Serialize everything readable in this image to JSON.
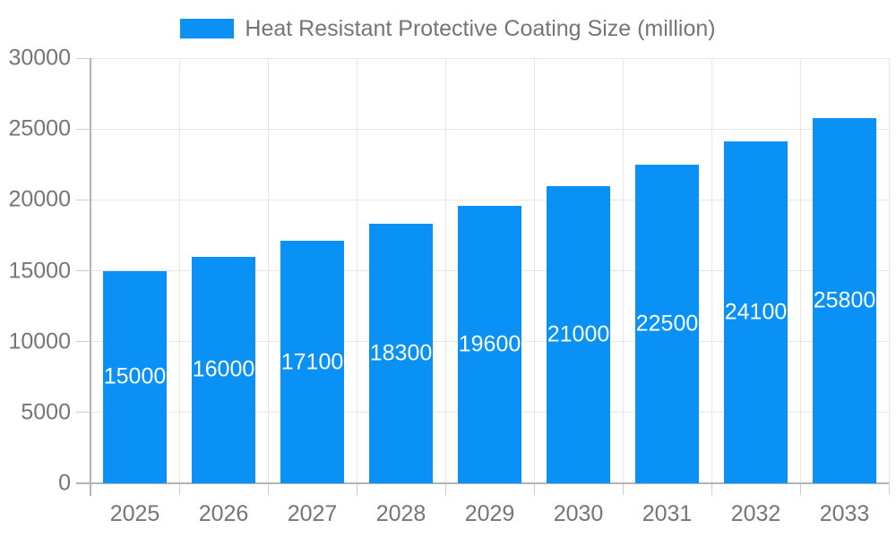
{
  "chart_data": {
    "type": "bar",
    "title": "Heat Resistant Protective Coating Size (million)",
    "categories": [
      "2025",
      "2026",
      "2027",
      "2028",
      "2029",
      "2030",
      "2031",
      "2032",
      "2033"
    ],
    "values": [
      15000,
      16000,
      17100,
      18300,
      19600,
      21000,
      22500,
      24100,
      25800
    ],
    "xlabel": "",
    "ylabel": "",
    "ylim": [
      0,
      30000
    ],
    "ytick_step": 5000,
    "ytick_labels": [
      "0",
      "5000",
      "10000",
      "15000",
      "20000",
      "25000",
      "30000"
    ],
    "grid": true,
    "legend_position": "top-center",
    "bar_value_labels_visible": true,
    "colors": {
      "bar": "#0991f5",
      "axis_text": "#757575",
      "grid_line": "#e6e6e6",
      "axis_line": "#b3b3b3",
      "tick": "#cccccc",
      "bar_label": "#ffffff",
      "background": "#ffffff"
    }
  }
}
